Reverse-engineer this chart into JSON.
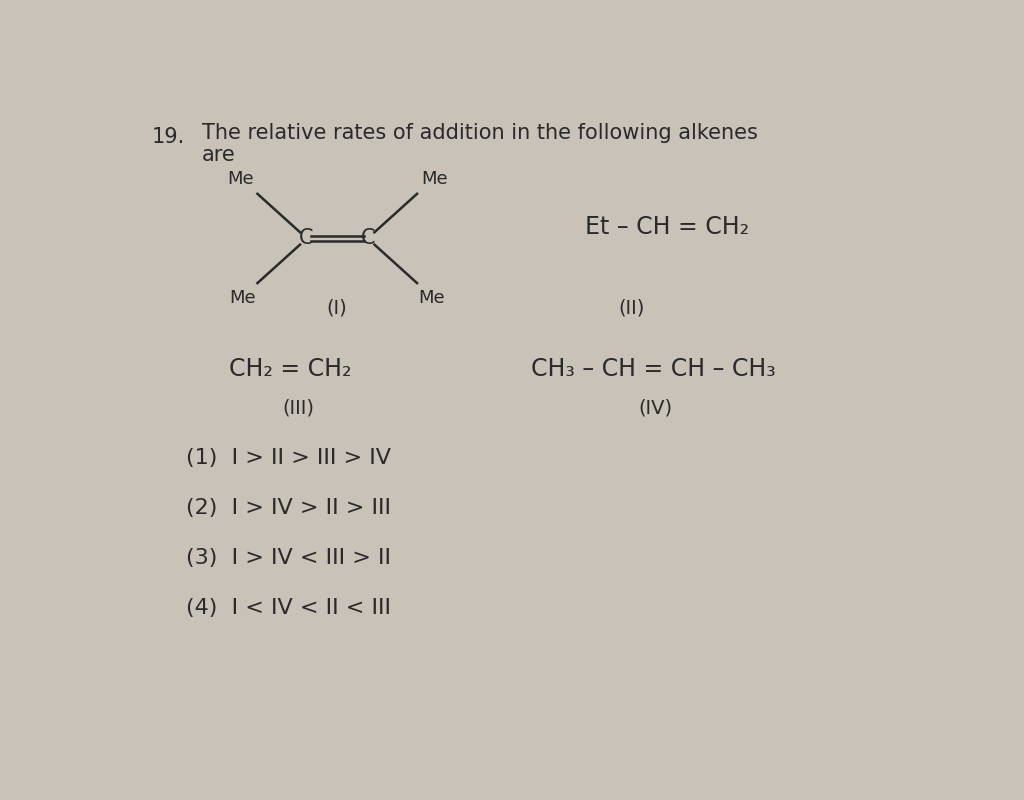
{
  "background_color": "#c8c2b8",
  "text_color": "#2a2a2a",
  "question_number": "19.",
  "question_text_line1": "The relative rates of addition in the following alkenes",
  "question_text_line2": "are",
  "compound_I_label": "(I)",
  "compound_II_label": "(II)",
  "compound_III_label": "(III)",
  "compound_IV_label": "(IV)",
  "option1": "(1)  I > II > III > IV",
  "option2": "(2)  I > IV > II > III",
  "option3": "(3)  I > IV < III > II",
  "option4": "(4)  I < IV < II < III",
  "font_size_question": 15,
  "font_size_compound": 17,
  "font_size_label": 14,
  "font_size_option": 16,
  "font_size_me": 13,
  "font_size_C": 15
}
